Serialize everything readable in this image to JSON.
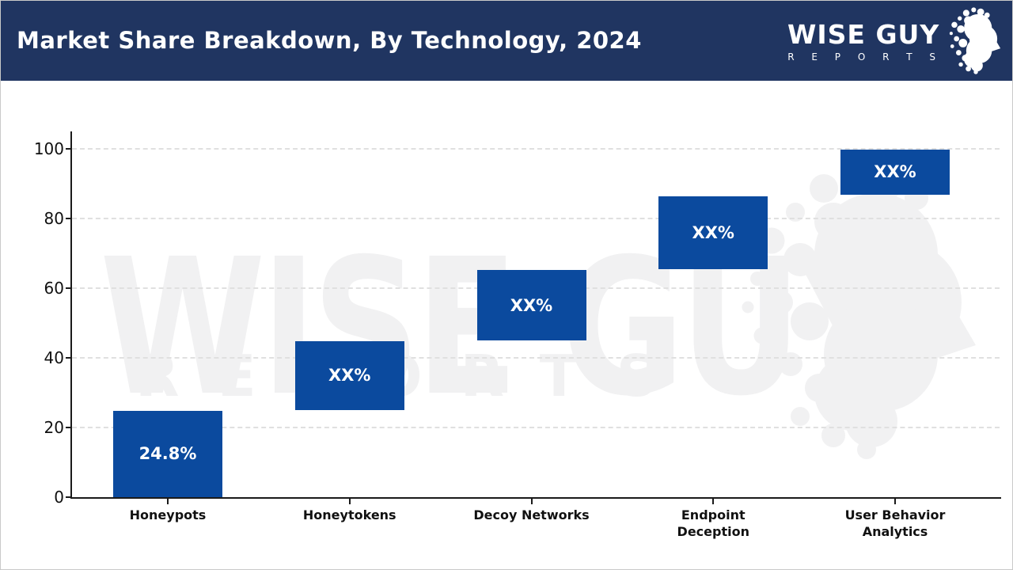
{
  "header": {
    "title": "Market Share Breakdown, By Technology, 2024",
    "logo": {
      "line1": "WISE GUY",
      "line2": "R E P O R T S"
    }
  },
  "watermark": {
    "line1": "WISE GUY",
    "line2": "REPORTS"
  },
  "colors": {
    "header_bg": "#203561",
    "bar": "#0b4a9e",
    "bar_label": "#ffffff",
    "watermark": "#f1f1f2",
    "gridline": "#e0e0e0",
    "axis": "#1a1a1a"
  },
  "chart_data": {
    "type": "bar",
    "subtype": "waterfall",
    "title": "Market Share Breakdown, By Technology, 2024",
    "categories": [
      "Honeypots",
      "Honeytokens",
      "Decoy Networks",
      "Endpoint Deception",
      "User Behavior Analytics"
    ],
    "segments": [
      {
        "category": "Honeypots",
        "start": 0,
        "end": 24.8,
        "label": "24.8%"
      },
      {
        "category": "Honeytokens",
        "start": 25.0,
        "end": 44.8,
        "label": "XX%"
      },
      {
        "category": "Decoy Networks",
        "start": 45.0,
        "end": 65.2,
        "label": "XX%"
      },
      {
        "category": "Endpoint Deception",
        "start": 65.5,
        "end": 86.4,
        "label": "XX%"
      },
      {
        "category": "User Behavior Analytics",
        "start": 86.8,
        "end": 99.8,
        "label": "XX%"
      }
    ],
    "yticks": [
      0,
      20,
      40,
      60,
      80,
      100
    ],
    "ylim": [
      0,
      105
    ],
    "xlabel": "",
    "ylabel": "",
    "grid": "horizontal-dashed",
    "legend": "none",
    "bar_color": "#0b4a9e",
    "value_label_color": "#ffffff"
  }
}
